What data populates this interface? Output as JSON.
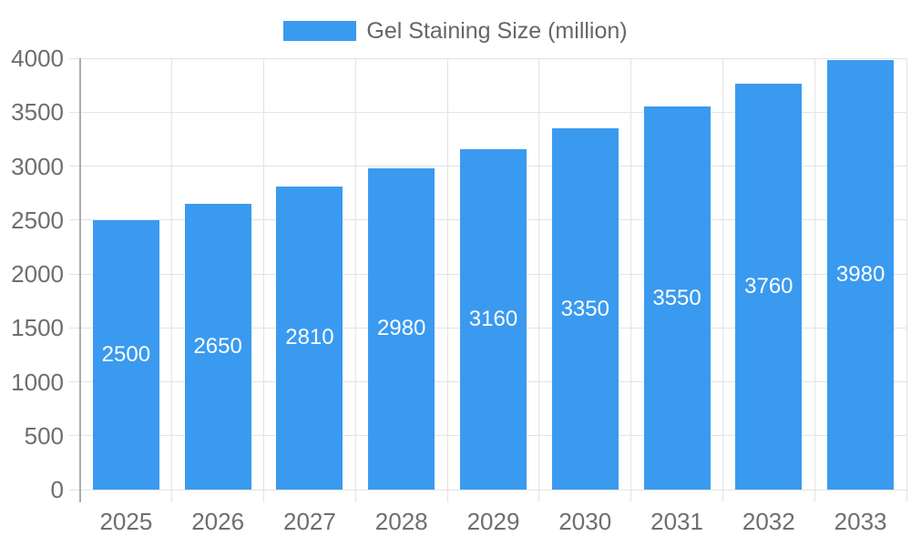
{
  "chart_data": {
    "type": "bar",
    "title": "",
    "xlabel": "",
    "ylabel": "",
    "legend_position": "top",
    "grid": true,
    "categories": [
      "2025",
      "2026",
      "2027",
      "2028",
      "2029",
      "2030",
      "2031",
      "2032",
      "2033"
    ],
    "series": [
      {
        "name": "Gel Staining Size (million)",
        "values": [
          2500,
          2650,
          2810,
          2980,
          3160,
          3350,
          3550,
          3760,
          3980
        ]
      }
    ],
    "bar_labels_visible": true,
    "ylim": [
      0,
      4000
    ],
    "ytick_step": 500,
    "yticks": [
      0,
      500,
      1000,
      1500,
      2000,
      2500,
      3000,
      3500,
      4000
    ],
    "colors": {
      "bar": "#3A9AEF",
      "bar_label_text": "#FFFFFF",
      "axis_text": "#6E6E6E",
      "grid_line": "#E3E3E3",
      "axis_line": "#ABABAB",
      "background": "#FFFFFF"
    }
  }
}
